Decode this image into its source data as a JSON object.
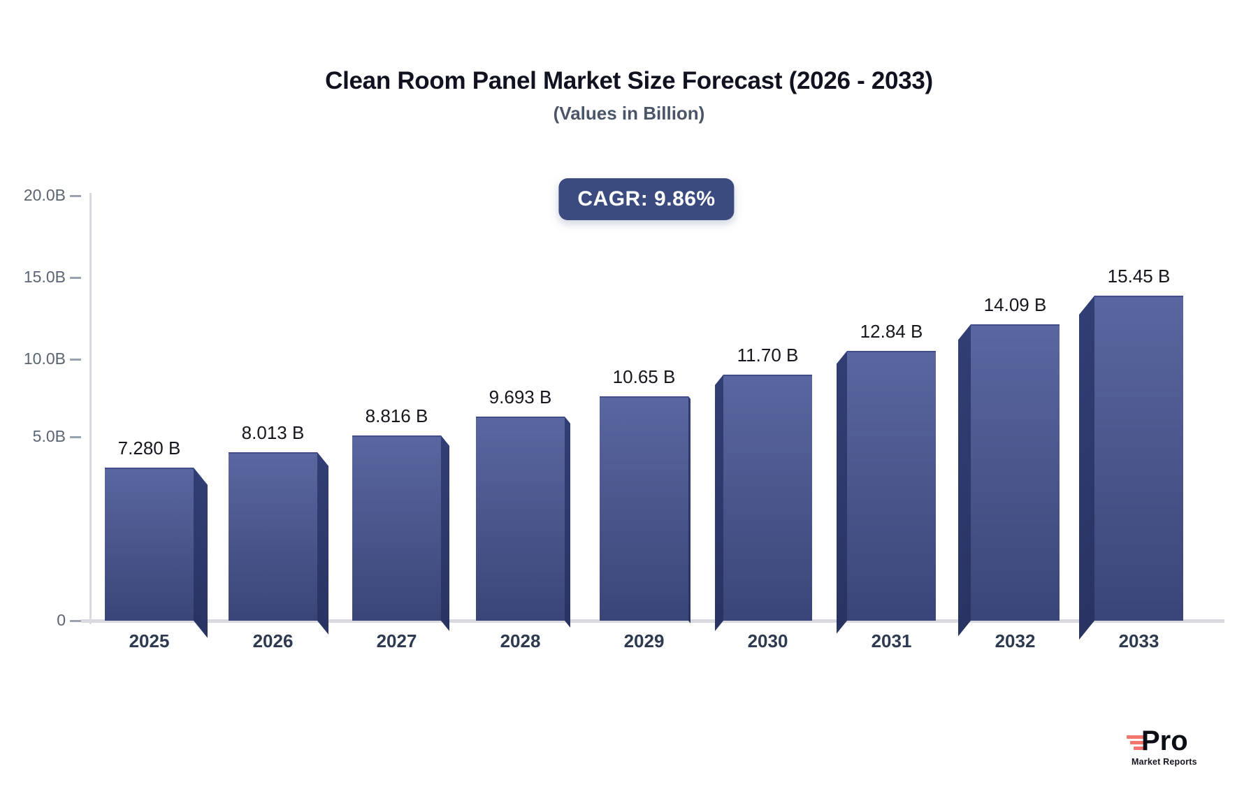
{
  "header": {
    "title": "Clean Room Panel Market Size Forecast (2026 - 2033)",
    "subtitle": "(Values in Billion)",
    "cagr_label": "CAGR: 9.86%"
  },
  "chart_data": {
    "type": "bar",
    "title": "Clean Room Panel Market Size Forecast (2026 - 2033)",
    "subtitle": "(Values in Billion)",
    "annotation": "CAGR: 9.86%",
    "categories": [
      "2025",
      "2026",
      "2027",
      "2028",
      "2029",
      "2030",
      "2031",
      "2032",
      "2033"
    ],
    "values": [
      7.28,
      8.013,
      8.816,
      9.693,
      10.65,
      11.7,
      12.84,
      14.09,
      15.45
    ],
    "value_labels": [
      "7.280 B",
      "8.013 B",
      "8.816 B",
      "9.693 B",
      "10.65 B",
      "11.70 B",
      "12.84 B",
      "14.09 B",
      "15.45 B"
    ],
    "xlabel": "",
    "ylabel": "",
    "ylim": [
      0,
      20
    ],
    "ytick_labels": [
      "20.0B",
      "15.0B",
      "10.0B",
      "5.0B",
      "0"
    ],
    "grid": false,
    "legend": false,
    "bar_style": "3d",
    "colors": {
      "bar_front_top": "#5a66a0",
      "bar_front_bottom": "#3a4577",
      "bar_side": "#2b3768",
      "bar_top_edge": "#424e8c"
    }
  },
  "badge": {
    "background": "#3b4b80",
    "text_color": "#ffffff"
  },
  "axis_colors": {
    "axis_line": "#d8dadf",
    "tick_mark": "#9aa2af",
    "y_tick_text": "#5b6472",
    "x_tick_text": "#2d3a4f",
    "value_label_text": "#15171f"
  },
  "footer_logo": {
    "brand": "Pro",
    "tagline": "Market Reports",
    "stripe_color": "#f2766b"
  }
}
